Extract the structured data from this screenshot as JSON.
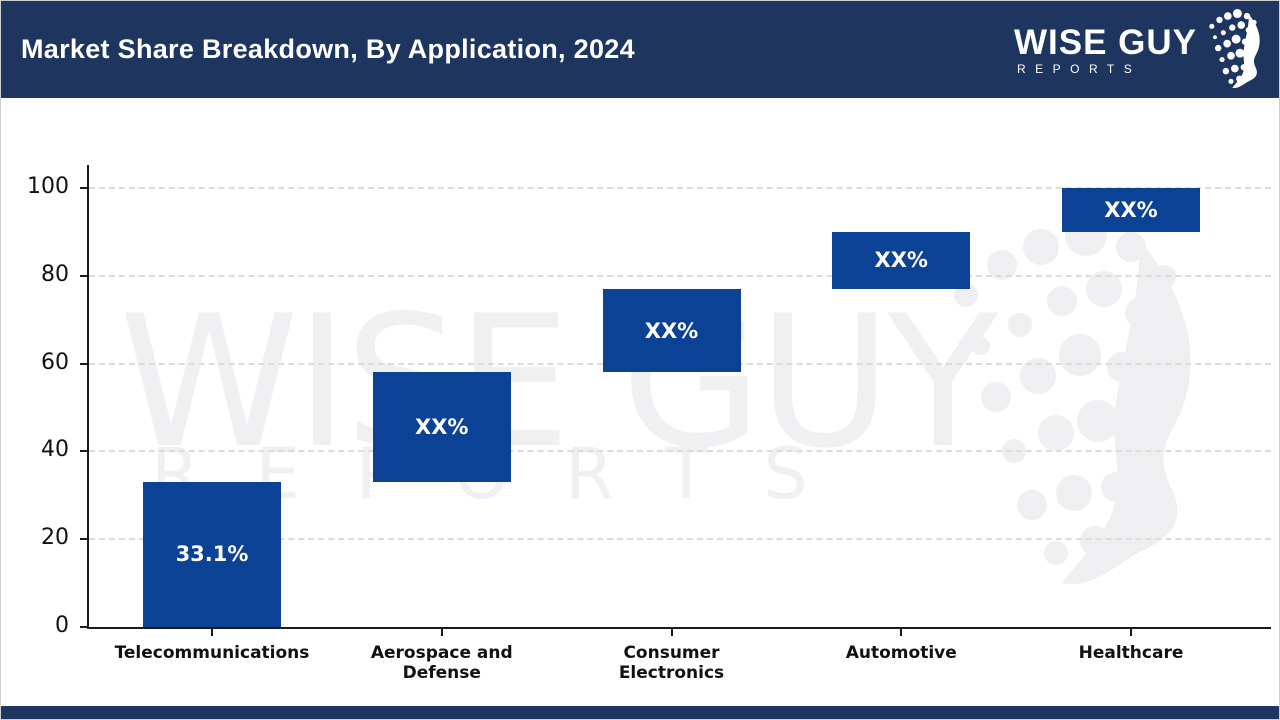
{
  "header": {
    "title": "Market Share Breakdown, By Application, 2024",
    "logo": {
      "line1": "WISE GUY",
      "line2": "REPORTS"
    }
  },
  "watermark": {
    "line1": "WISE GUY",
    "line2": "REPORTS"
  },
  "chart_data": {
    "type": "bar",
    "subtype": "waterfall",
    "title": "Market Share Breakdown, By Application, 2024",
    "categories": [
      "Telecommunications",
      "Aerospace and\nDefense",
      "Consumer\nElectronics",
      "Automotive",
      "Healthcare"
    ],
    "bars": [
      {
        "category": "Telecommunications",
        "start": 0,
        "end": 33.1,
        "label": "33.1%"
      },
      {
        "category": "Aerospace and Defense",
        "start": 33.1,
        "end": 58,
        "label": "XX%"
      },
      {
        "category": "Consumer Electronics",
        "start": 58,
        "end": 77,
        "label": "XX%"
      },
      {
        "category": "Automotive",
        "start": 77,
        "end": 90,
        "label": "XX%"
      },
      {
        "category": "Healthcare",
        "start": 90,
        "end": 100,
        "label": "XX%"
      }
    ],
    "yticks": [
      0,
      20,
      40,
      60,
      80,
      100
    ],
    "ylim": [
      0,
      105
    ],
    "grid": "horizontal-dashed",
    "xlabel": "",
    "ylabel": "",
    "bar_color": "#0b4295"
  },
  "colors": {
    "header_bg": "#1e355f",
    "footer_bg": "#1e355f",
    "bar": "#0b4295",
    "grid": "#dcdcdc",
    "axis": "#1a1a1a",
    "tick_text": "#111111",
    "bar_label_text": "#ffffff",
    "watermark": "#f0f0f3"
  }
}
